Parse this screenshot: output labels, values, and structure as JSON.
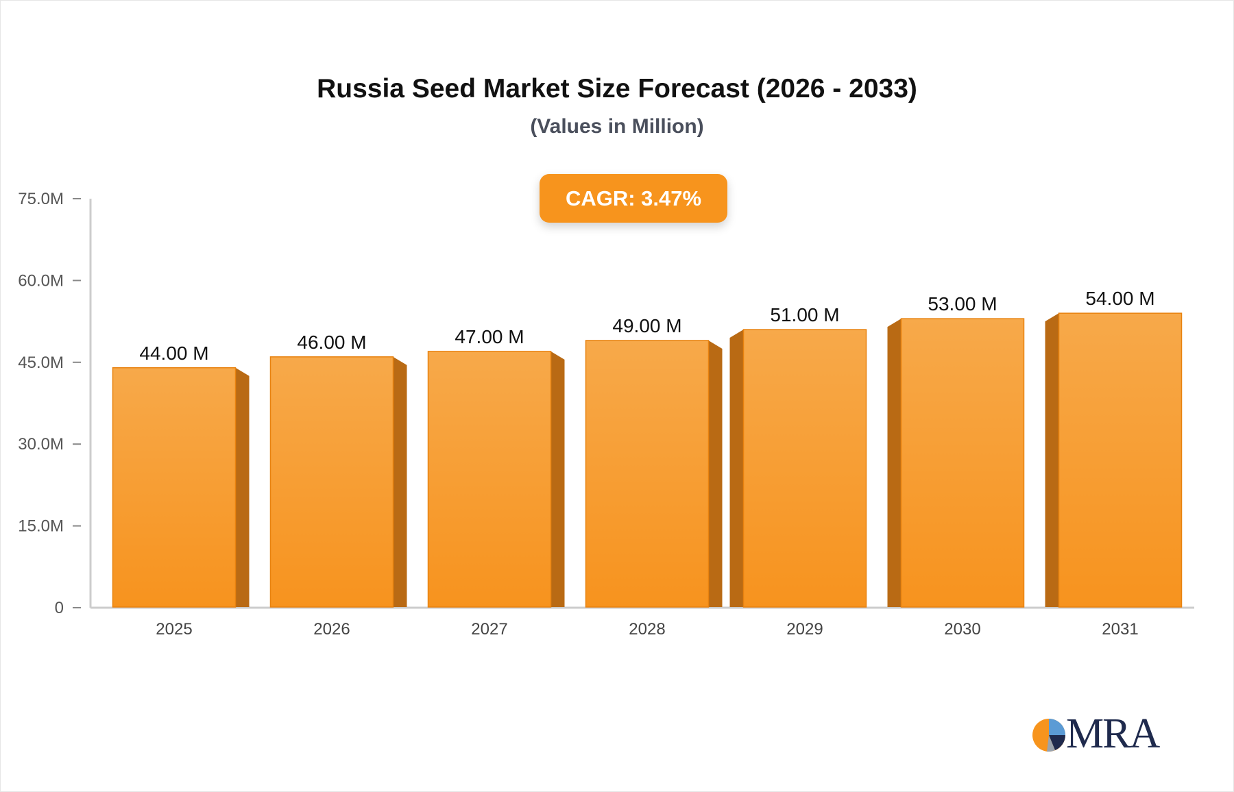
{
  "chart_data": {
    "type": "bar",
    "title": "Russia Seed Market Size Forecast (2026 - 2033)",
    "subtitle": "(Values in Million)",
    "categories": [
      "2025",
      "2026",
      "2027",
      "2028",
      "2029",
      "2030",
      "2031"
    ],
    "values": [
      44,
      46,
      47,
      49,
      51,
      53,
      54
    ],
    "data_labels": [
      "44.00 M",
      "46.00 M",
      "47.00 M",
      "49.00 M",
      "51.00 M",
      "53.00 M",
      "54.00 M"
    ],
    "yticks": [
      0,
      15,
      30,
      45,
      60,
      75
    ],
    "ytick_labels": [
      "0",
      "15.0M",
      "30.0M",
      "45.0M",
      "60.0M",
      "75.0M"
    ],
    "ylim": [
      0,
      75
    ],
    "xlabel": "",
    "ylabel": "",
    "grid": false,
    "bar_color": "#f7941d",
    "annotation": "CAGR: 3.47%"
  },
  "badge": {
    "cagr": "CAGR: 3.47%"
  },
  "logo": {
    "text": "MRA"
  },
  "colors": {
    "bar_top": "#f7a94a",
    "bar_bottom": "#f7941d",
    "bar_side": "#b96a14",
    "axis": "#cccccc",
    "badge": "#f7941d",
    "logo_navy": "#1f2a4d"
  }
}
